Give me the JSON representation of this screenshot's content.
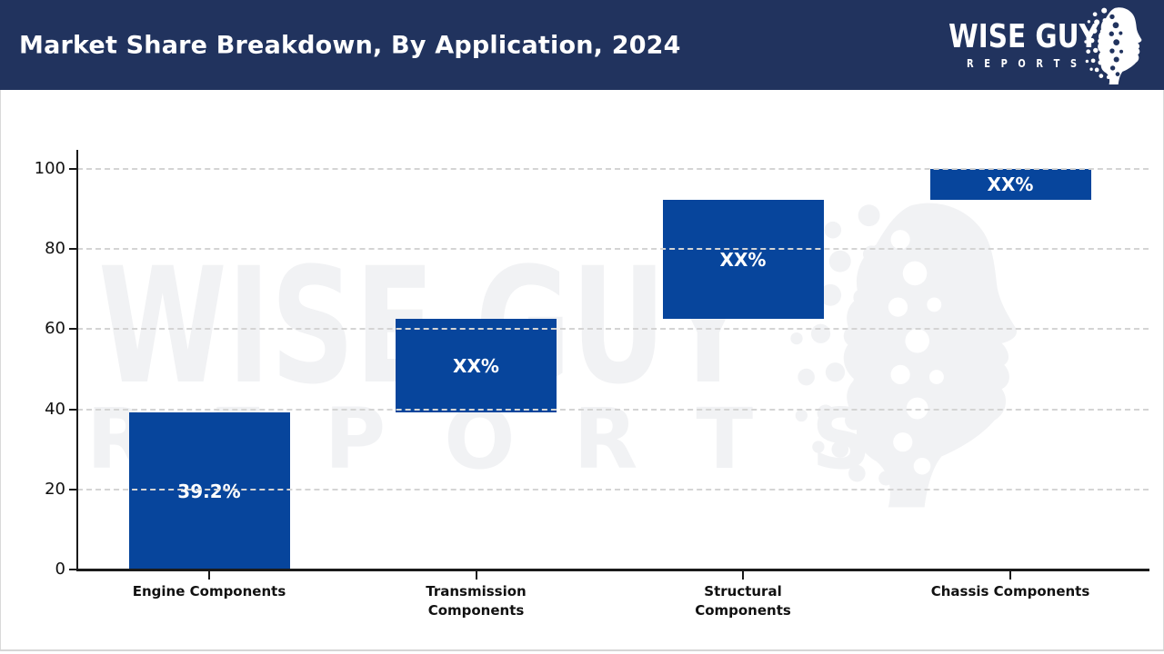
{
  "header": {
    "title": "Market Share Breakdown, By Application, 2024",
    "bg_color": "#21335e",
    "logo": {
      "line1": "WISE GUY",
      "line2": "R E P O R T S"
    }
  },
  "watermark": {
    "line1": "WISE GUY",
    "line2": "R E P O R T S"
  },
  "chart_data": {
    "type": "bar",
    "subtype": "waterfall",
    "title": "Market Share Breakdown, By Application, 2024",
    "categories": [
      "Engine Components",
      "Transmission\nComponents",
      "Structural\nComponents",
      "Chassis Components"
    ],
    "segments": [
      {
        "category": "Engine Components",
        "start": 0,
        "end": 39.2,
        "label": "39.2%"
      },
      {
        "category": "Transmission Components",
        "start": 39.2,
        "end": 62.5,
        "label": "XX%"
      },
      {
        "category": "Structural Components",
        "start": 62.5,
        "end": 92.3,
        "label": "XX%"
      },
      {
        "category": "Chassis Components",
        "start": 92.3,
        "end": 100,
        "label": "XX%"
      }
    ],
    "xlabel": "",
    "ylabel": "",
    "ylim": [
      0,
      100
    ],
    "yticks": [
      0,
      20,
      40,
      60,
      80,
      100
    ],
    "grid": "horizontal-dashed",
    "legend": false,
    "bar_color": "#07459c",
    "gridline_color": "#d4d4d4",
    "axis_color": "#1a1a1a"
  }
}
